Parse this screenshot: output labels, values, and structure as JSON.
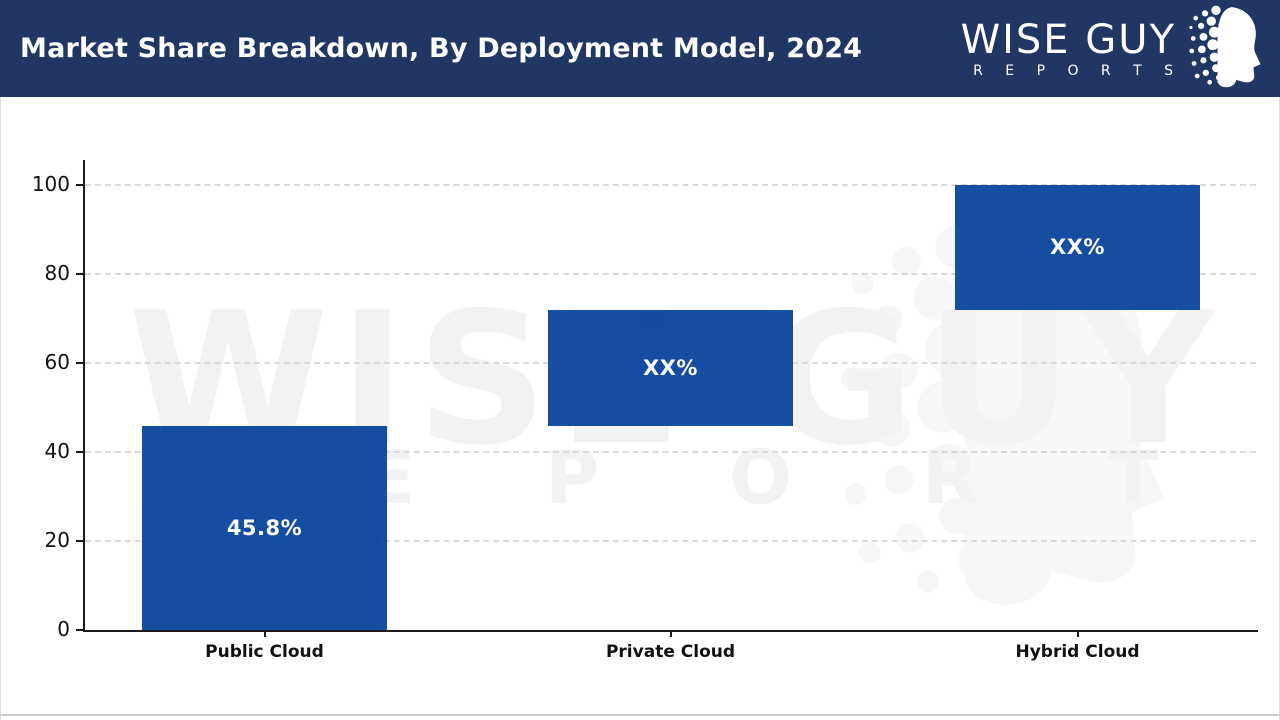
{
  "header": {
    "title": "Market Share Breakdown, By Deployment Model, 2024",
    "bg_color": "#203663",
    "logo": {
      "wordmark": "WISE GUY",
      "subtext": "R E P O R T S"
    }
  },
  "watermark": {
    "line1": "WISE GUY",
    "line2": "R E P O R T S"
  },
  "chart_data": {
    "type": "bar",
    "subtype": "floating-waterfall",
    "title": "Market Share Breakdown, By Deployment Model, 2024",
    "categories": [
      "Public Cloud",
      "Private Cloud",
      "Hybrid Cloud"
    ],
    "series": [
      {
        "name": "Market share (%)",
        "segments": [
          {
            "category": "Public Cloud",
            "start": 0,
            "end": 45.8,
            "label": "45.8%"
          },
          {
            "category": "Private Cloud",
            "start": 45.8,
            "end": 72,
            "label": "XX%"
          },
          {
            "category": "Hybrid Cloud",
            "start": 72,
            "end": 100,
            "label": "XX%"
          }
        ]
      }
    ],
    "ylim": [
      0,
      100
    ],
    "yticks": [
      0,
      20,
      40,
      60,
      80,
      100
    ],
    "grid": {
      "axis": "y",
      "style": "dashed",
      "color": "#d9d9d9"
    },
    "bar_color": "#04419a",
    "bar_label_color": "#ffffff",
    "axis_color": "#1a1a1a",
    "legend": "none",
    "xlabel": "",
    "ylabel": ""
  }
}
